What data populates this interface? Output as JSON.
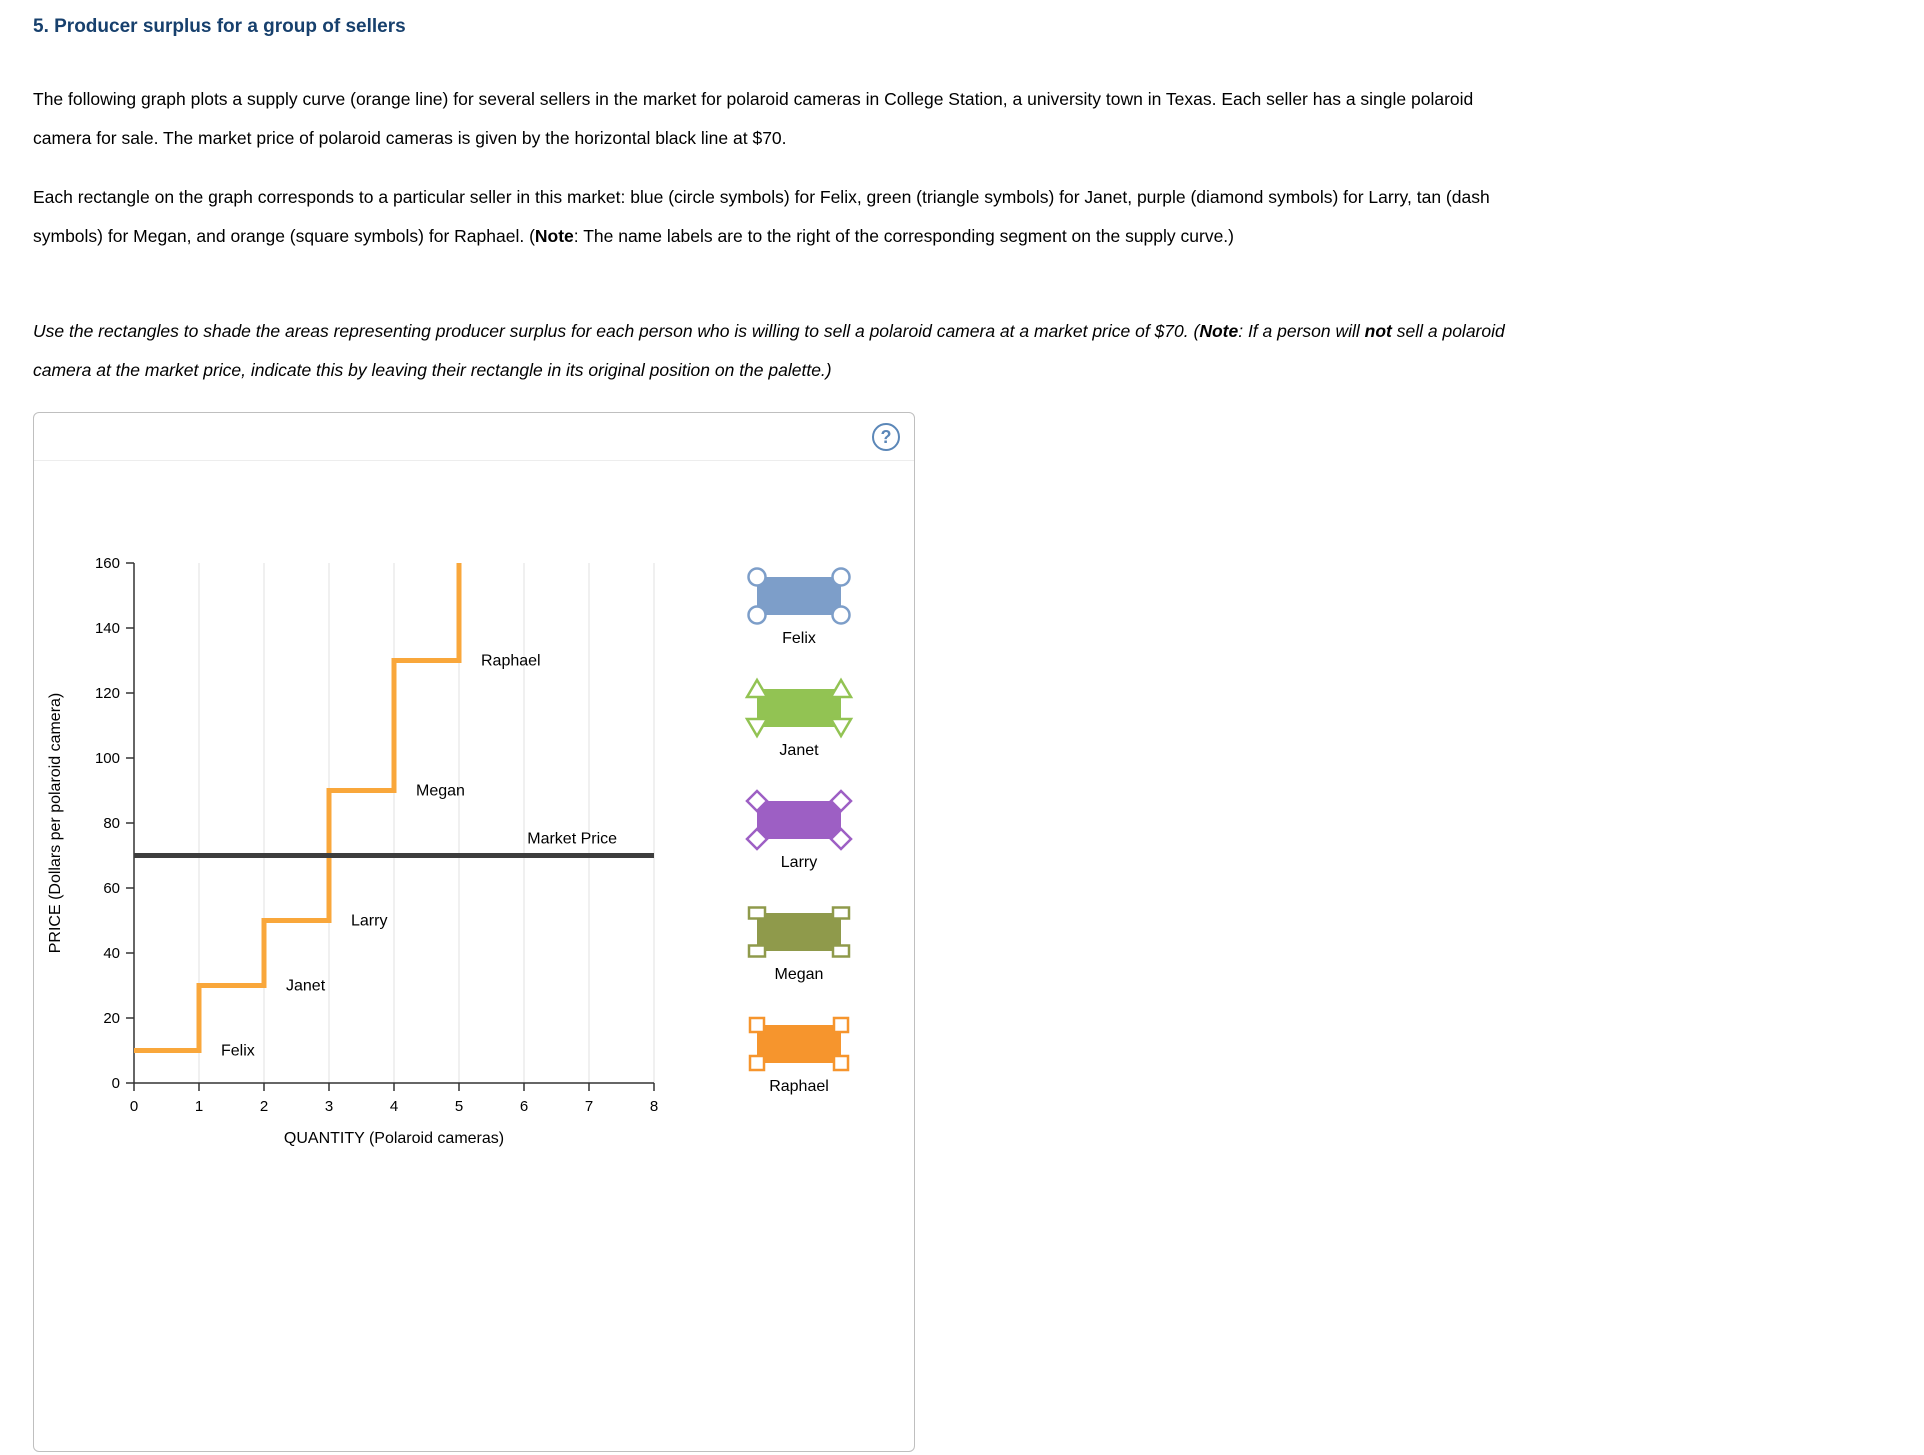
{
  "page": {
    "title": "5. Producer surplus for a group of sellers",
    "paragraph1": "The following graph plots a supply curve (orange line) for several sellers in the market for polaroid cameras in College Station, a university town in Texas. Each seller has a single polaroid camera for sale. The market price of polaroid cameras is given by the horizontal black line at $70.",
    "paragraph2_part1": "Each rectangle on the graph corresponds to a particular seller in this market: blue (circle symbols) for Felix, green (triangle symbols) for Janet, purple (diamond symbols) for Larry, tan (dash symbols) for Megan, and orange (square symbols) for Raphael. (",
    "paragraph2_note": "Note",
    "paragraph2_part2": ": The name labels are to the right of the corresponding segment on the supply curve.)",
    "paragraph3_part1": "Use the rectangles to shade the areas representing producer surplus for each person who is willing to sell a polaroid camera at a market price of $70. (",
    "paragraph3_note": "Note",
    "paragraph3_part2": ": If a person will ",
    "paragraph3_not": "not",
    "paragraph3_part3": " sell a polaroid camera at the market price, indicate this by leaving their rectangle in its original position on the palette.)"
  },
  "help_icon": {
    "glyph": "?"
  },
  "chart_data": {
    "type": "line",
    "subtype": "step-supply-curve",
    "title": "",
    "xlabel": "QUANTITY (Polaroid cameras)",
    "ylabel": "PRICE (Dollars per polaroid camera)",
    "xlim": [
      0,
      8
    ],
    "ylim": [
      0,
      160
    ],
    "x_ticks": [
      0,
      1,
      2,
      3,
      4,
      5,
      6,
      7,
      8
    ],
    "y_ticks": [
      0,
      20,
      40,
      60,
      80,
      100,
      120,
      140,
      160
    ],
    "grid": "vertical-only",
    "supply_curve": {
      "color": "#F9A73B",
      "points": [
        [
          0,
          10
        ],
        [
          1,
          10
        ],
        [
          1,
          30
        ],
        [
          2,
          30
        ],
        [
          2,
          50
        ],
        [
          3,
          50
        ],
        [
          3,
          90
        ],
        [
          4,
          90
        ],
        [
          4,
          130
        ],
        [
          5,
          130
        ],
        [
          5,
          160
        ]
      ]
    },
    "market_price": {
      "value": 70,
      "label": "Market Price",
      "color": "#3D3D3D",
      "label_x": 6.05
    },
    "sellers": [
      {
        "name": "Felix",
        "reservation_price": 10,
        "quantity_segment": [
          0,
          1
        ],
        "color": "#7D9EC9",
        "symbol": "circle"
      },
      {
        "name": "Janet",
        "reservation_price": 30,
        "quantity_segment": [
          1,
          2
        ],
        "color": "#92C353",
        "symbol": "triangle"
      },
      {
        "name": "Larry",
        "reservation_price": 50,
        "quantity_segment": [
          2,
          3
        ],
        "color": "#9D5FC4",
        "symbol": "diamond"
      },
      {
        "name": "Megan",
        "reservation_price": 90,
        "quantity_segment": [
          3,
          4
        ],
        "color": "#8F9A4B",
        "symbol": "dash"
      },
      {
        "name": "Raphael",
        "reservation_price": 130,
        "quantity_segment": [
          4,
          5
        ],
        "color": "#F6952D",
        "symbol": "square"
      }
    ]
  },
  "palette": {
    "items": [
      {
        "label": "Felix",
        "color": "#7D9EC9",
        "symbol": "circle"
      },
      {
        "label": "Janet",
        "color": "#92C353",
        "symbol": "triangle"
      },
      {
        "label": "Larry",
        "color": "#9D5FC4",
        "symbol": "diamond"
      },
      {
        "label": "Megan",
        "color": "#8F9A4B",
        "symbol": "dash"
      },
      {
        "label": "Raphael",
        "color": "#F6952D",
        "symbol": "square"
      }
    ]
  }
}
